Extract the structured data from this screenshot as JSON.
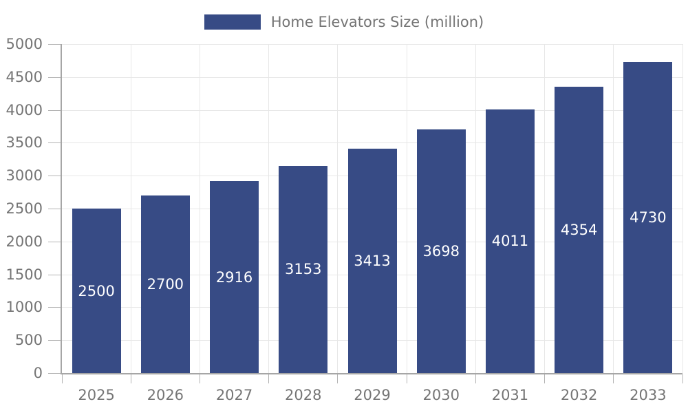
{
  "chart_data": {
    "type": "bar",
    "title": "Home Elevators Size (million)",
    "categories": [
      "2025",
      "2026",
      "2027",
      "2028",
      "2029",
      "2030",
      "2031",
      "2032",
      "2033"
    ],
    "values": [
      2500,
      2700,
      2916,
      3153,
      3413,
      3698,
      4011,
      4354,
      4730
    ],
    "xlabel": "",
    "ylabel": "",
    "ylim": [
      0,
      5000
    ],
    "ytick_step": 500,
    "grid": true,
    "legend_position": "top-center",
    "legend_entries": [
      "Home Elevators Size (million)"
    ],
    "bar_color": "#374B85",
    "value_label_color": "#ffffff",
    "axis_text_color": "#757575",
    "gridline_color": "#e7e7e7",
    "axis_line_color": "#a6a6a6"
  }
}
